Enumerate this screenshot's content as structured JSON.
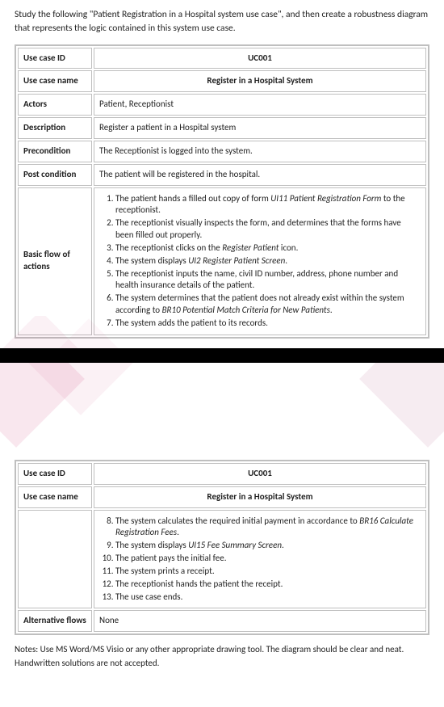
{
  "intro": "Study the following \"Patient Registration in a Hospital system use case\", and then create a robustness diagram that represents the logic contained in this system use case.",
  "labels": {
    "usecase_id": "Use case ID",
    "usecase_name": "Use case name",
    "actors": "Actors",
    "description": "Description",
    "precondition": "Precondition",
    "postcondition": "Post condition",
    "basic_flow": "Basic flow of actions",
    "alt_flows": "Alternative flows"
  },
  "table1": {
    "id": "UC001",
    "name": "Register in a Hospital System",
    "actors": "Patient, Receptionist",
    "description": "Register a patient in a Hospital system",
    "precondition": "The Receptionist is logged into the system.",
    "postcondition": "The patient will be registered in the hospital.",
    "steps": {
      "start": 1,
      "items": [
        {
          "pre": "The patient hands a filled out copy of form ",
          "ital": "UI11 Patient Registration Form",
          "post": " to the receptionist."
        },
        {
          "pre": "The receptionist visually inspects the form, and determines that the forms have been filled out properly.",
          "ital": "",
          "post": ""
        },
        {
          "pre": "The receptionist clicks on the ",
          "ital": "Register Patient",
          "post": " icon."
        },
        {
          "pre": "The system displays ",
          "ital": "UI2 Register Patient Screen",
          "post": "."
        },
        {
          "pre": "The receptionist inputs the name, civil ID number, address, phone number and health insurance details of the patient.",
          "ital": "",
          "post": ""
        },
        {
          "pre": "The system determines that the patient does not already exist within the system according to ",
          "ital": "BR10 Potential Match Criteria for New Patients",
          "post": "."
        },
        {
          "pre": "The system adds the patient to its records.",
          "ital": "",
          "post": ""
        }
      ]
    }
  },
  "table2": {
    "id": "UC001",
    "name": "Register in a Hospital System",
    "steps": {
      "start": 8,
      "items": [
        {
          "pre": "The system calculates the required initial payment in accordance to ",
          "ital": "BR16 Calculate Registration Fees",
          "post": "."
        },
        {
          "pre": "The system displays ",
          "ital": "UI15 Fee Summary Screen",
          "post": "."
        },
        {
          "pre": "The patient pays the initial fee.",
          "ital": "",
          "post": ""
        },
        {
          "pre": "The system prints a receipt.",
          "ital": "",
          "post": ""
        },
        {
          "pre": "The receptionist hands the patient the receipt.",
          "ital": "",
          "post": ""
        },
        {
          "pre": "The use case ends.",
          "ital": "",
          "post": ""
        }
      ]
    },
    "alt_flows": "None"
  },
  "notes": "Notes: Use MS Word/MS Visio or any other appropriate drawing tool. The diagram should be clear and neat. Handwritten solutions are not accepted."
}
